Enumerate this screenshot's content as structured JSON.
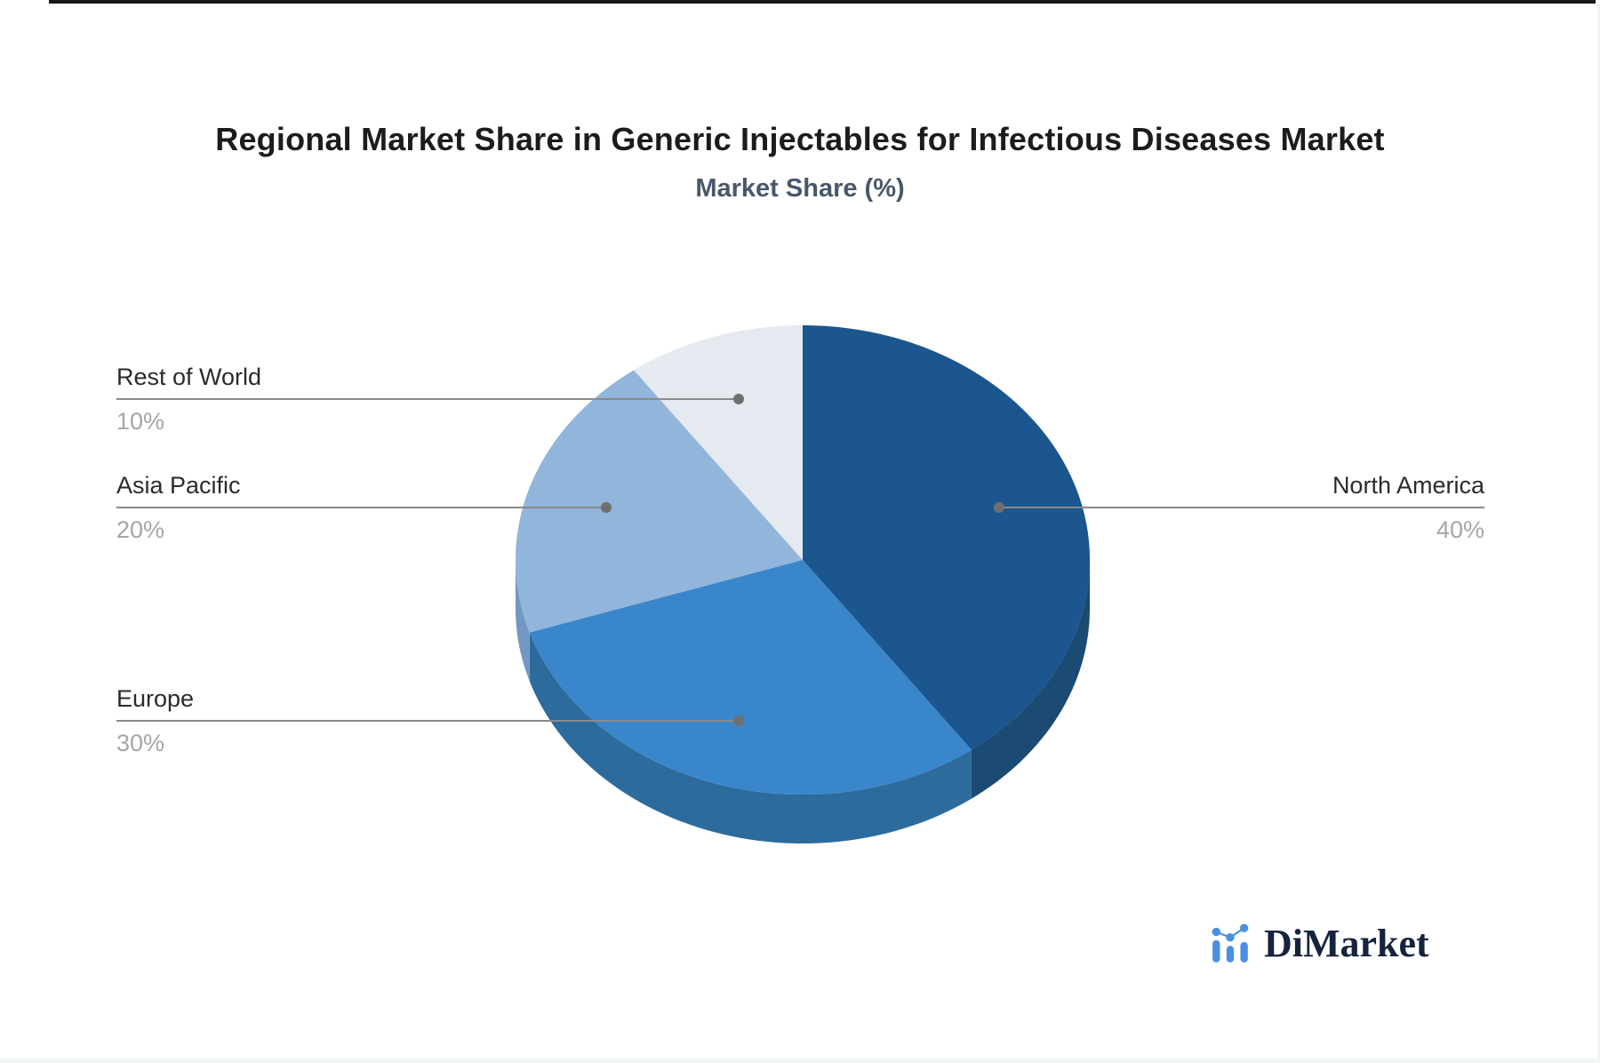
{
  "page": {
    "title": "Regional Market Share in Generic Injectables for Infectious Diseases Market",
    "subtitle": "Market Share (%)"
  },
  "brand": {
    "name": "DiMarket",
    "icon": "bar-chart-logo-icon",
    "icon_color": "#4a90e2",
    "text_color": "#16233e"
  },
  "chart_data": {
    "type": "pie",
    "title": "Regional Market Share in Generic Injectables for Infectious Diseases Market",
    "subtitle": "Market Share (%)",
    "unit": "%",
    "effect": "3d",
    "direction": "clockwise",
    "start_angle_deg": 0,
    "legend": "none",
    "labels": "callout-lines",
    "slices": [
      {
        "label": "North America",
        "value": 40,
        "display": "40%",
        "color": "#1b568f",
        "side_color": "#1b4a72",
        "callout_side": "right"
      },
      {
        "label": "Europe",
        "value": 30,
        "display": "30%",
        "color": "#3a86cb",
        "side_color": "#2d6b9d",
        "callout_side": "left"
      },
      {
        "label": "Asia Pacific",
        "value": 20,
        "display": "20%",
        "color": "#92b5dc",
        "side_color": "#7397c3",
        "callout_side": "left"
      },
      {
        "label": "Rest of World",
        "value": 10,
        "display": "10%",
        "color": "#e5eaf1",
        "side_color": "#c3cede",
        "callout_side": "left"
      }
    ],
    "callout_line_color": "#8a8a8a",
    "callout_dot_color": "#6f6f6f",
    "label_color": "#2b2b2b",
    "value_color": "#a6a6a6"
  }
}
